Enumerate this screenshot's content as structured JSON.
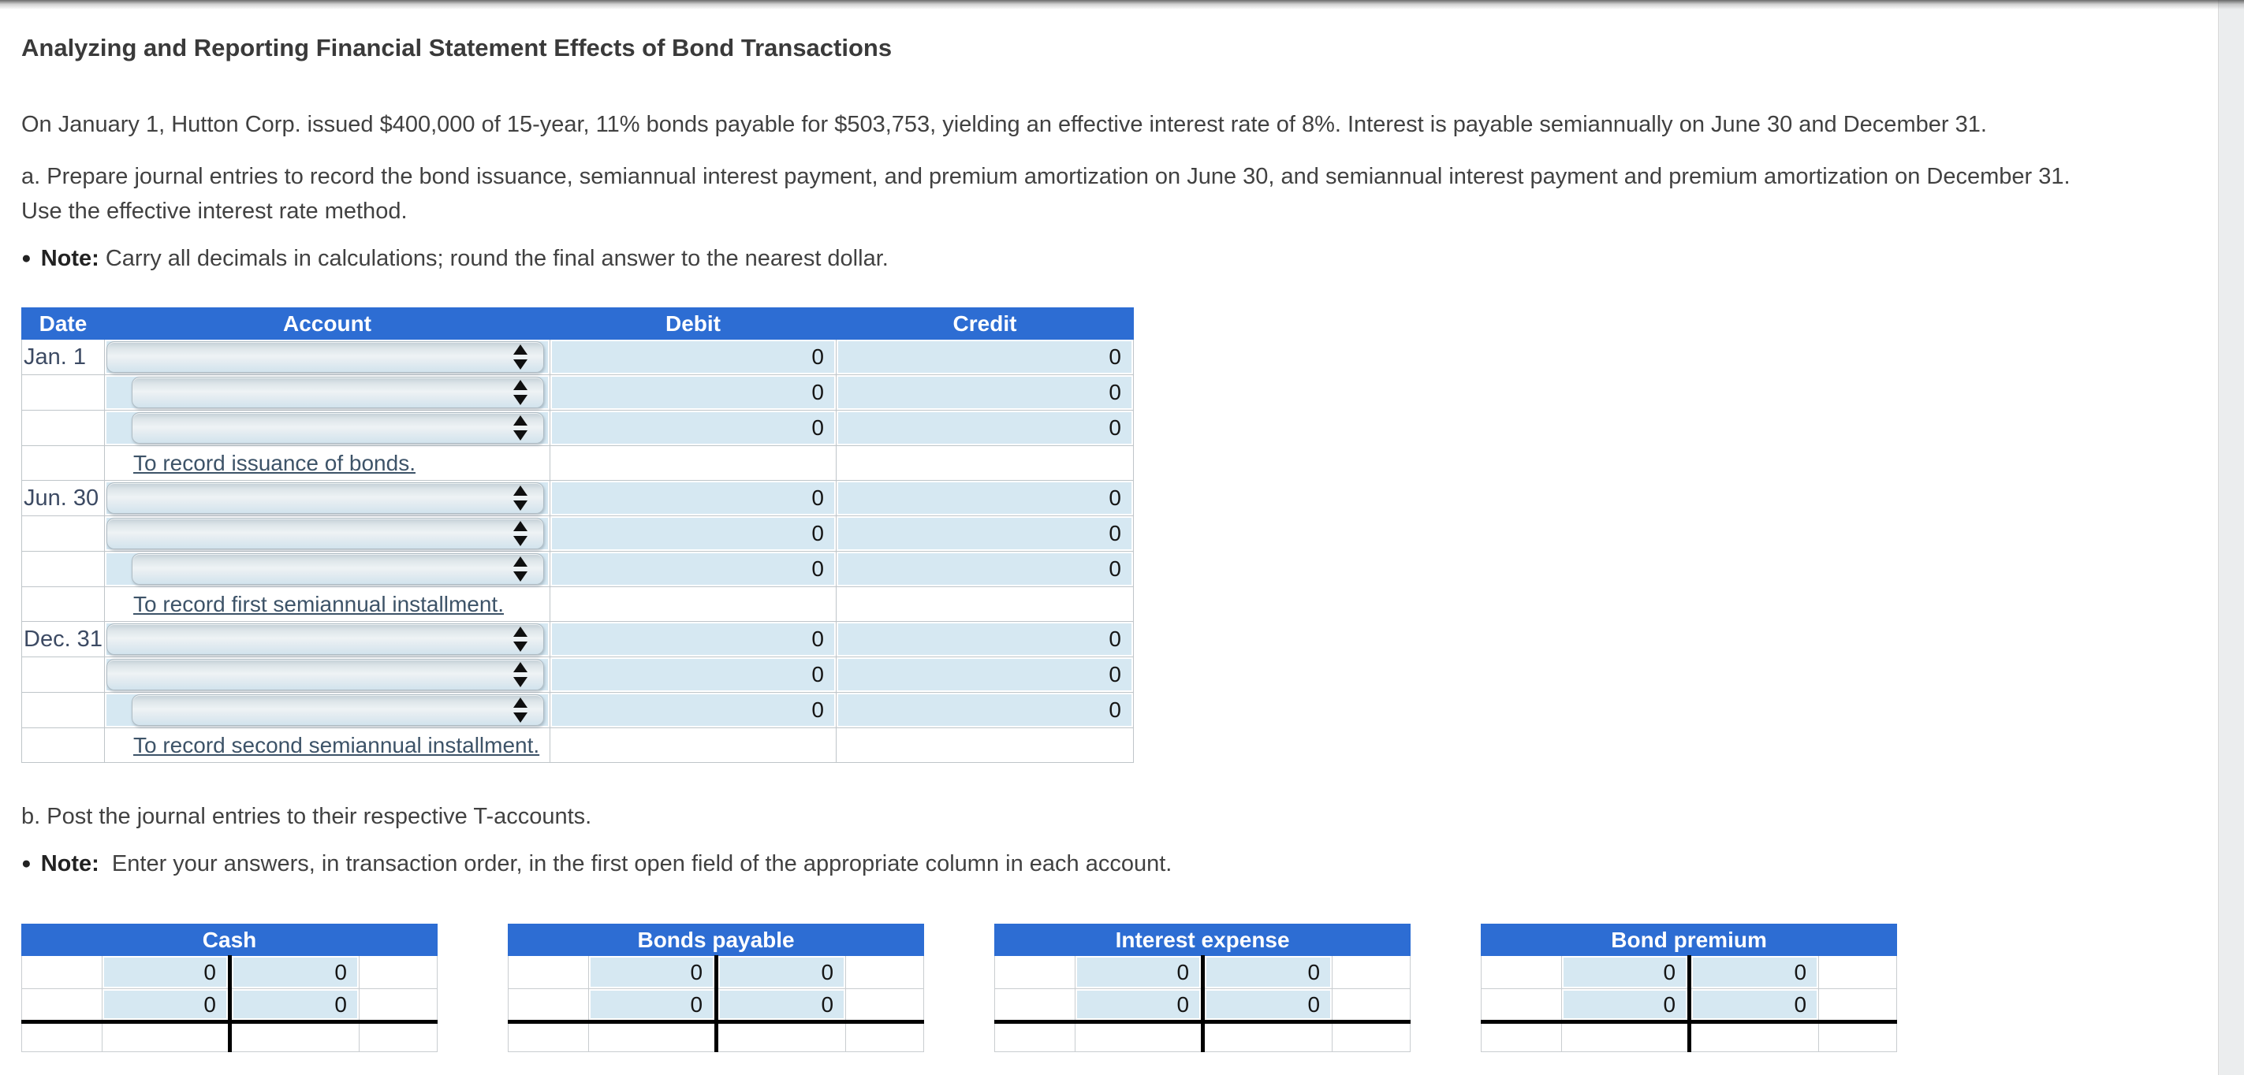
{
  "colors": {
    "header_blue": "#2d6dd3",
    "cell_blue": "#d6e8f2"
  },
  "header": {
    "title": "Analyzing and Reporting Financial Statement Effects of Bond Transactions"
  },
  "problem": {
    "intro": "On January 1, Hutton Corp. issued $400,000 of 15-year, 11% bonds payable for $503,753, yielding an effective interest rate of 8%. Interest is payable semiannually on June 30 and December 31.",
    "part_a_instruction": "a. Prepare journal entries to record the bond issuance, semiannual interest payment, and premium amortization on June 30, and semiannual interest payment and premium amortization on December 31. Use the effective interest rate method.",
    "bullet": "●",
    "part_a_note_label": "Note:",
    "part_a_note": "Carry all decimals in calculations; round the final answer to the nearest dollar.",
    "part_b_instruction": "b. Post the journal entries to their respective T-accounts.",
    "part_b_note_label": "Note:",
    "part_b_note": "Enter your answers, in transaction order, in the first open field of the appropriate column in each account."
  },
  "journal": {
    "headers": [
      "Date",
      "Account",
      "Debit",
      "Credit"
    ],
    "sections": [
      {
        "date": "Jan. 1",
        "rows": [
          {
            "debit": "0",
            "credit": "0"
          },
          {
            "debit": "0",
            "credit": "0"
          },
          {
            "debit": "0",
            "credit": "0"
          }
        ],
        "description": "To record issuance of bonds."
      },
      {
        "date": "Jun. 30",
        "rows": [
          {
            "debit": "0",
            "credit": "0"
          },
          {
            "debit": "0",
            "credit": "0"
          },
          {
            "debit": "0",
            "credit": "0"
          }
        ],
        "description": "To record first semiannual installment."
      },
      {
        "date": "Dec. 31",
        "rows": [
          {
            "debit": "0",
            "credit": "0"
          },
          {
            "debit": "0",
            "credit": "0"
          },
          {
            "debit": "0",
            "credit": "0"
          }
        ],
        "description": "To record second semiannual installment."
      }
    ]
  },
  "t_accounts": [
    {
      "title": "Cash",
      "rows": [
        [
          "0",
          "0"
        ],
        [
          "0",
          "0"
        ]
      ]
    },
    {
      "title": "Bonds payable",
      "rows": [
        [
          "0",
          "0"
        ],
        [
          "0",
          "0"
        ]
      ]
    },
    {
      "title": "Interest expense",
      "rows": [
        [
          "0",
          "0"
        ],
        [
          "0",
          "0"
        ]
      ]
    },
    {
      "title": "Bond premium",
      "rows": [
        [
          "0",
          "0"
        ],
        [
          "0",
          "0"
        ]
      ]
    }
  ]
}
